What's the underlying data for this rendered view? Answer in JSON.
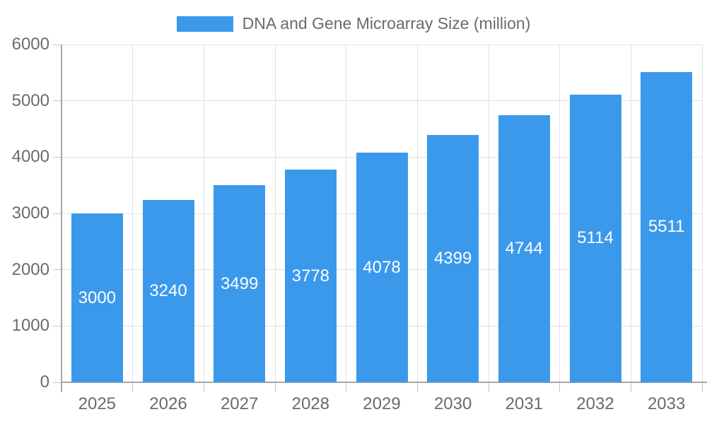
{
  "legend": {
    "label": "DNA and Gene Microarray Size (million)"
  },
  "chart_data": {
    "type": "bar",
    "title": "DNA and Gene Microarray Size (million)",
    "categories": [
      "2025",
      "2026",
      "2027",
      "2028",
      "2029",
      "2030",
      "2031",
      "2032",
      "2033"
    ],
    "values": [
      3000,
      3240,
      3499,
      3778,
      4078,
      4399,
      4744,
      5114,
      5511
    ],
    "value_labels": [
      "3000",
      "3240",
      "3499",
      "3778",
      "4078",
      "4399",
      "4744",
      "5114",
      "5511"
    ],
    "xlabel": "",
    "ylabel": "",
    "ylim": [
      0,
      6000
    ],
    "yticks": [
      0,
      1000,
      2000,
      3000,
      4000,
      5000,
      6000
    ],
    "ytick_labels": [
      "0",
      "1000",
      "2000",
      "3000",
      "4000",
      "5000",
      "6000"
    ],
    "grid": true,
    "legend_position": "top-center",
    "colors": {
      "bar": "#3B99EC",
      "value_label": "#FFFFFF",
      "grid_line": "#E2E2E2",
      "axis_line": "#A6A6A6",
      "tick_line": "#C4C4C4",
      "axis_text": "#6B6B6B"
    }
  }
}
